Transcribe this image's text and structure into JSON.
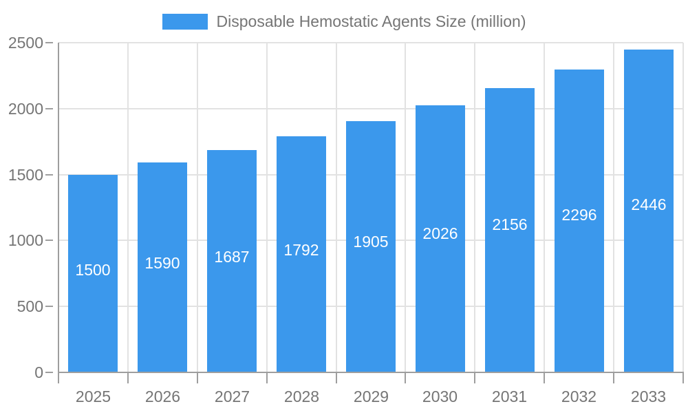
{
  "legend": {
    "label": "Disposable Hemostatic Agents Size (million)"
  },
  "chart_data": {
    "type": "bar",
    "title": "Disposable Hemostatic Agents Size (million)",
    "categories": [
      "2025",
      "2026",
      "2027",
      "2028",
      "2029",
      "2030",
      "2031",
      "2032",
      "2033"
    ],
    "values": [
      1500,
      1590,
      1687,
      1792,
      1905,
      2026,
      2156,
      2296,
      2446
    ],
    "xlabel": "",
    "ylabel": "",
    "ylim": [
      0,
      2500
    ],
    "yticks": [
      0,
      500,
      1000,
      1500,
      2000,
      2500
    ],
    "grid": true,
    "legend_position": "top-center",
    "value_labels": "inside-middle"
  },
  "colors": {
    "bar": "#3b98ec",
    "bar_label": "#ffffff",
    "grid": "#e2e2e2",
    "axis": "#9e9e9e",
    "text": "#757575",
    "background": "#ffffff"
  }
}
